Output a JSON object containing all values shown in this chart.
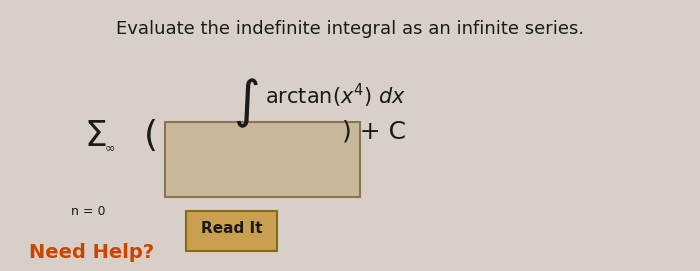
{
  "bg_color": "#d8d0c8",
  "title_text": "Evaluate the indefinite integral as an infinite series.",
  "title_color": "#1a1a1a",
  "title_fontsize": 13,
  "integral_text": "∫ arctan(x⁴) dx",
  "sigma_text": "Σ",
  "sigma_sub": "n = 0",
  "sigma_sup": "∞",
  "plus_c_text": ") + C",
  "open_paren": "(",
  "need_help_text": "Need Help?",
  "need_help_color": "#cc4400",
  "read_it_text": "Read It",
  "read_it_bg": "#c8a050",
  "read_it_border": "#8b6914",
  "box_color": "#c8b89a",
  "box_edgecolor": "#8b7355",
  "math_color": "#1a1a1a"
}
